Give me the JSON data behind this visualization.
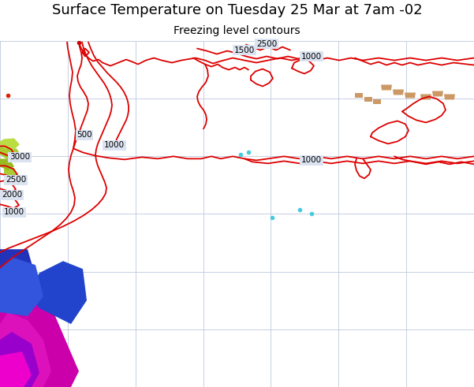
{
  "title": "Surface Temperature on Tuesday 25 Mar at 7am -02",
  "subtitle": "Freezing level contours",
  "title_fontsize": 13,
  "subtitle_fontsize": 10,
  "bg_color": "#dce3f0",
  "grid_color": "#bec8de",
  "fig_bg": "#ffffff",
  "contour_color": "#dd0000",
  "contour_lw": 1.3,
  "label_fontsize": 7.5,
  "land_antarctica_magenta": "#cc00aa",
  "land_antarctica_purple": "#8800cc",
  "land_antarctica_blue": "#2233bb",
  "land_sg_green": "#aacc33",
  "land_sg_yellow": "#ccdd22",
  "land_island_cyan": "#44ccdd",
  "land_island_blue": "#3399cc"
}
